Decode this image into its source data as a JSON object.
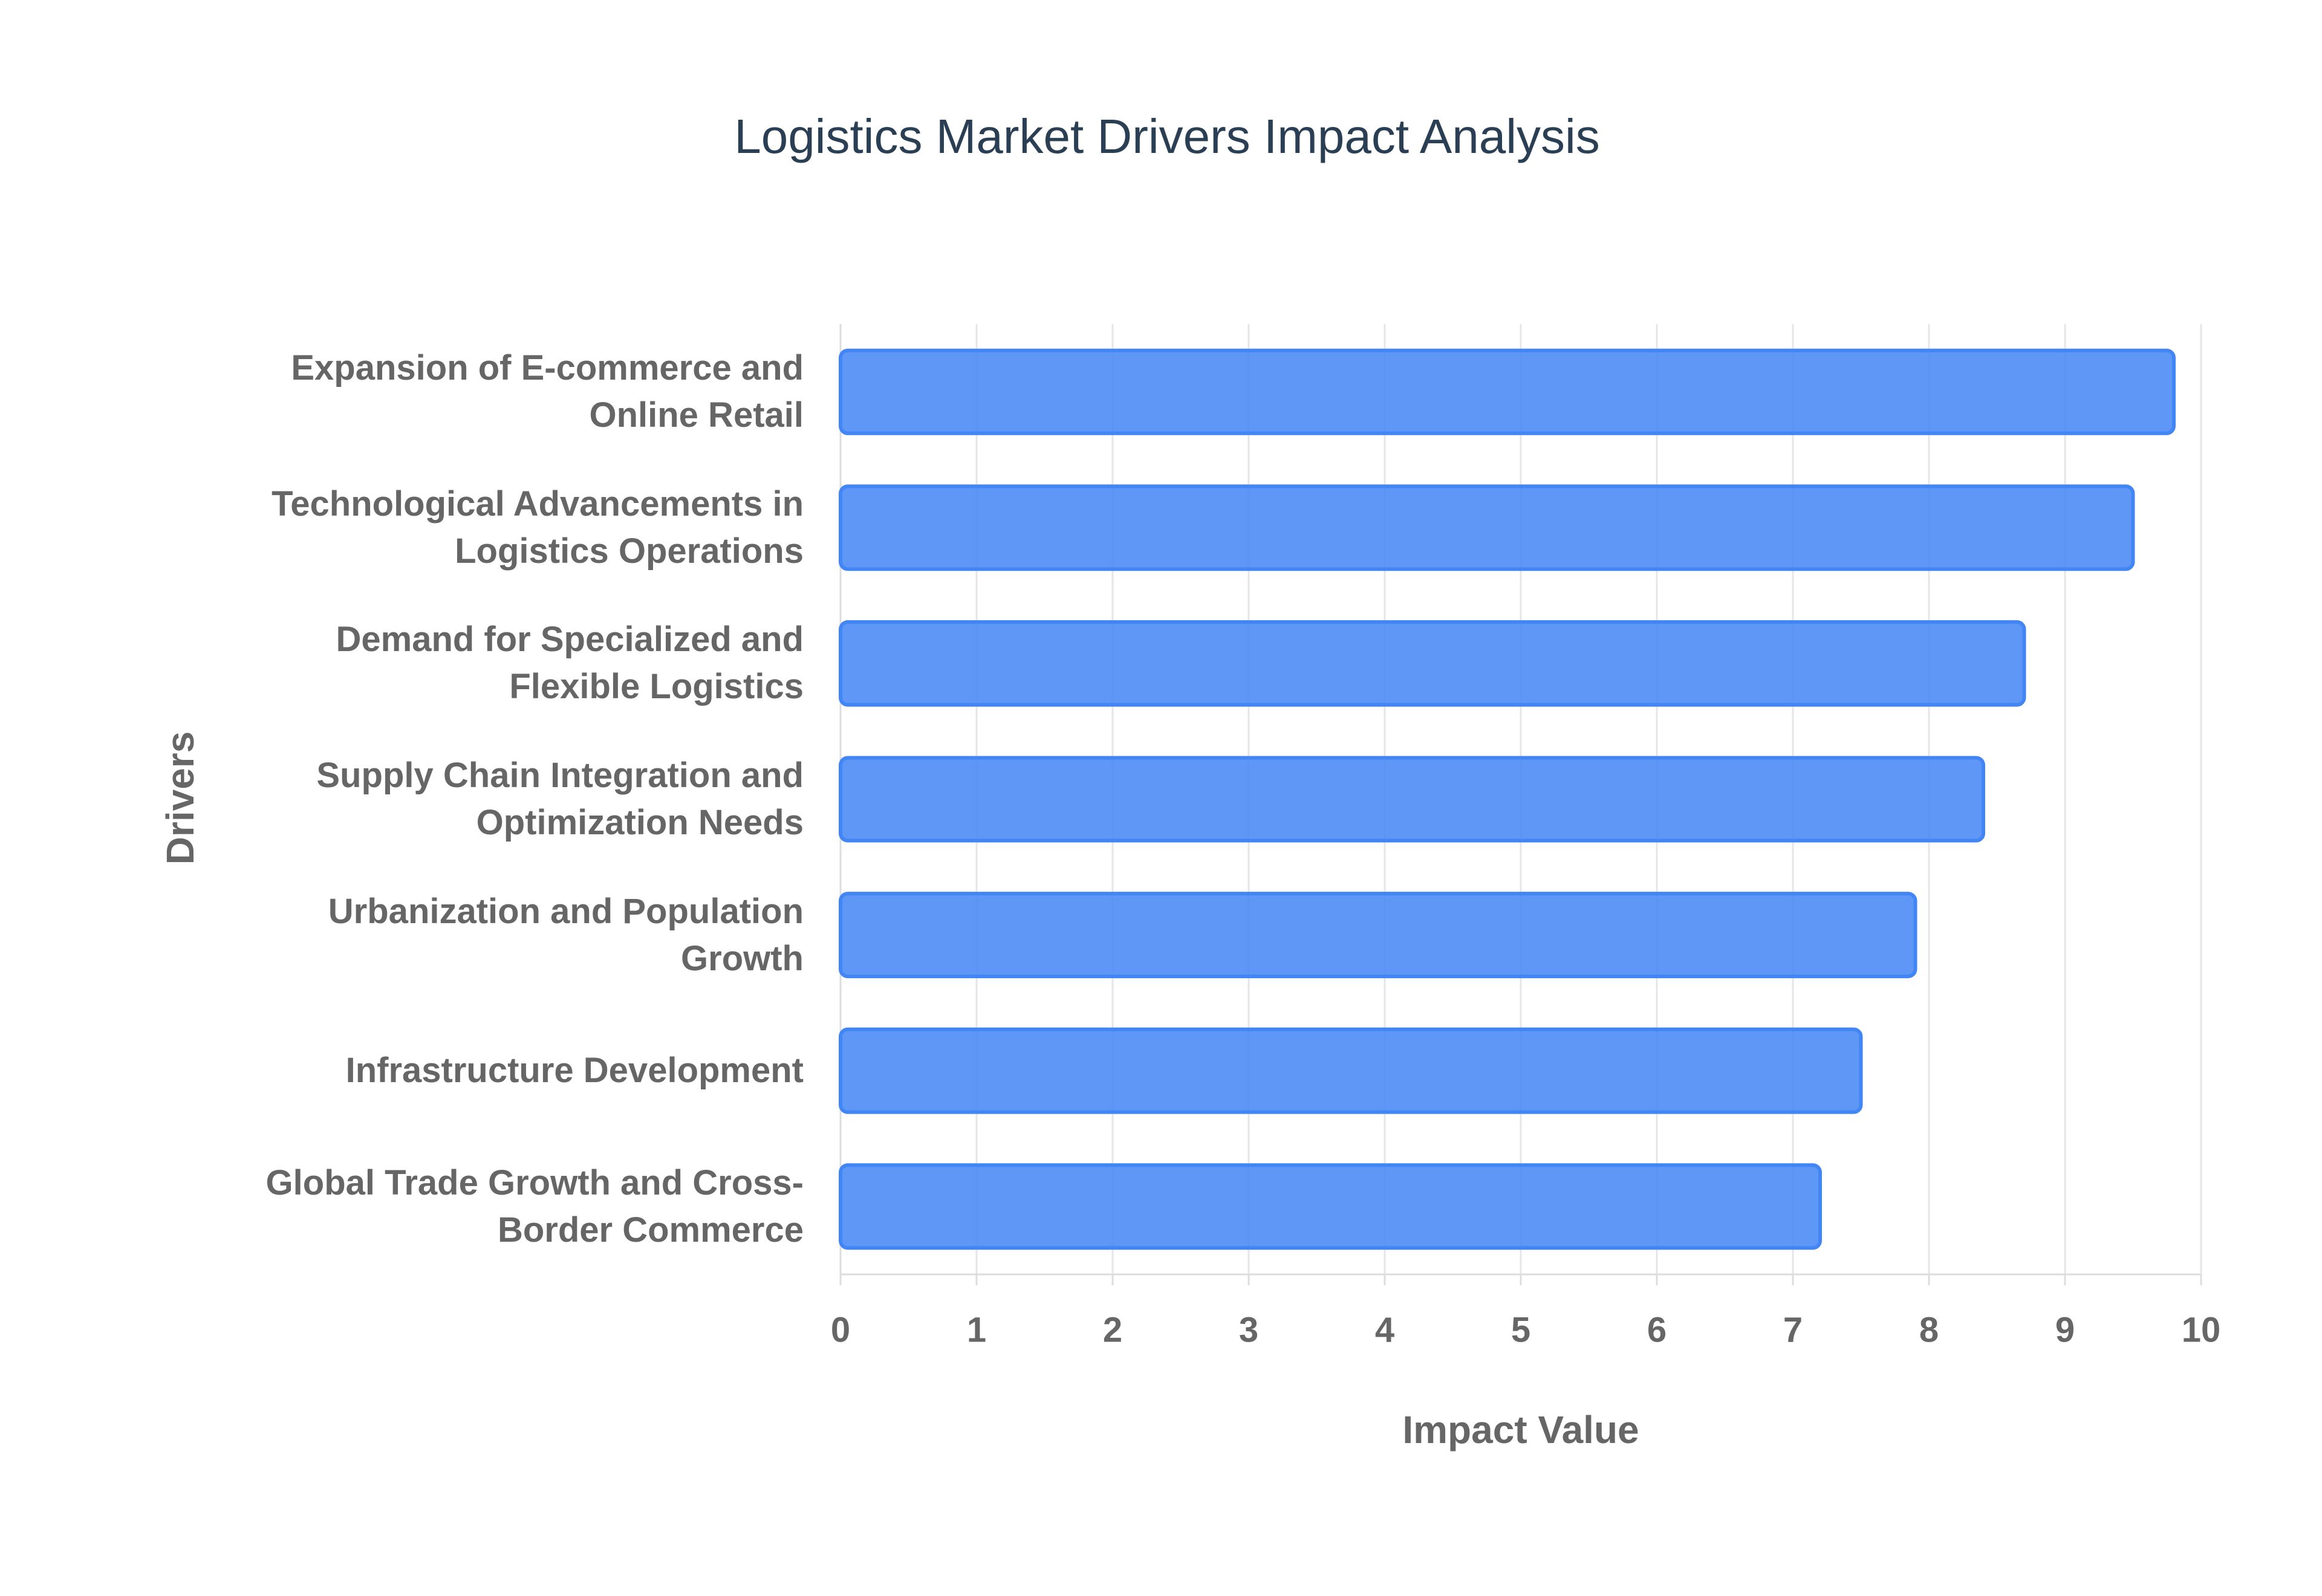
{
  "chart_data": {
    "type": "bar",
    "orientation": "horizontal",
    "title": "Logistics Market Drivers Impact Analysis",
    "x_label": "Impact Value",
    "y_label": "Drivers",
    "categories": [
      "Expansion of E-commerce and Online Retail",
      "Technological Advancements in Logistics Operations",
      "Demand for Specialized and Flexible Logistics",
      "Supply Chain Integration and Optimization Needs",
      "Urbanization and Population Growth",
      "Infrastructure Development",
      "Global Trade Growth and Cross-Border Commerce"
    ],
    "values": [
      9.8,
      9.5,
      8.7,
      8.4,
      7.9,
      7.5,
      7.2
    ],
    "color": "#4285f4",
    "xlim": [
      0,
      10
    ],
    "xticks": [
      0,
      1,
      2,
      3,
      4,
      5,
      6,
      7,
      8,
      9,
      10
    ],
    "grid": true
  }
}
